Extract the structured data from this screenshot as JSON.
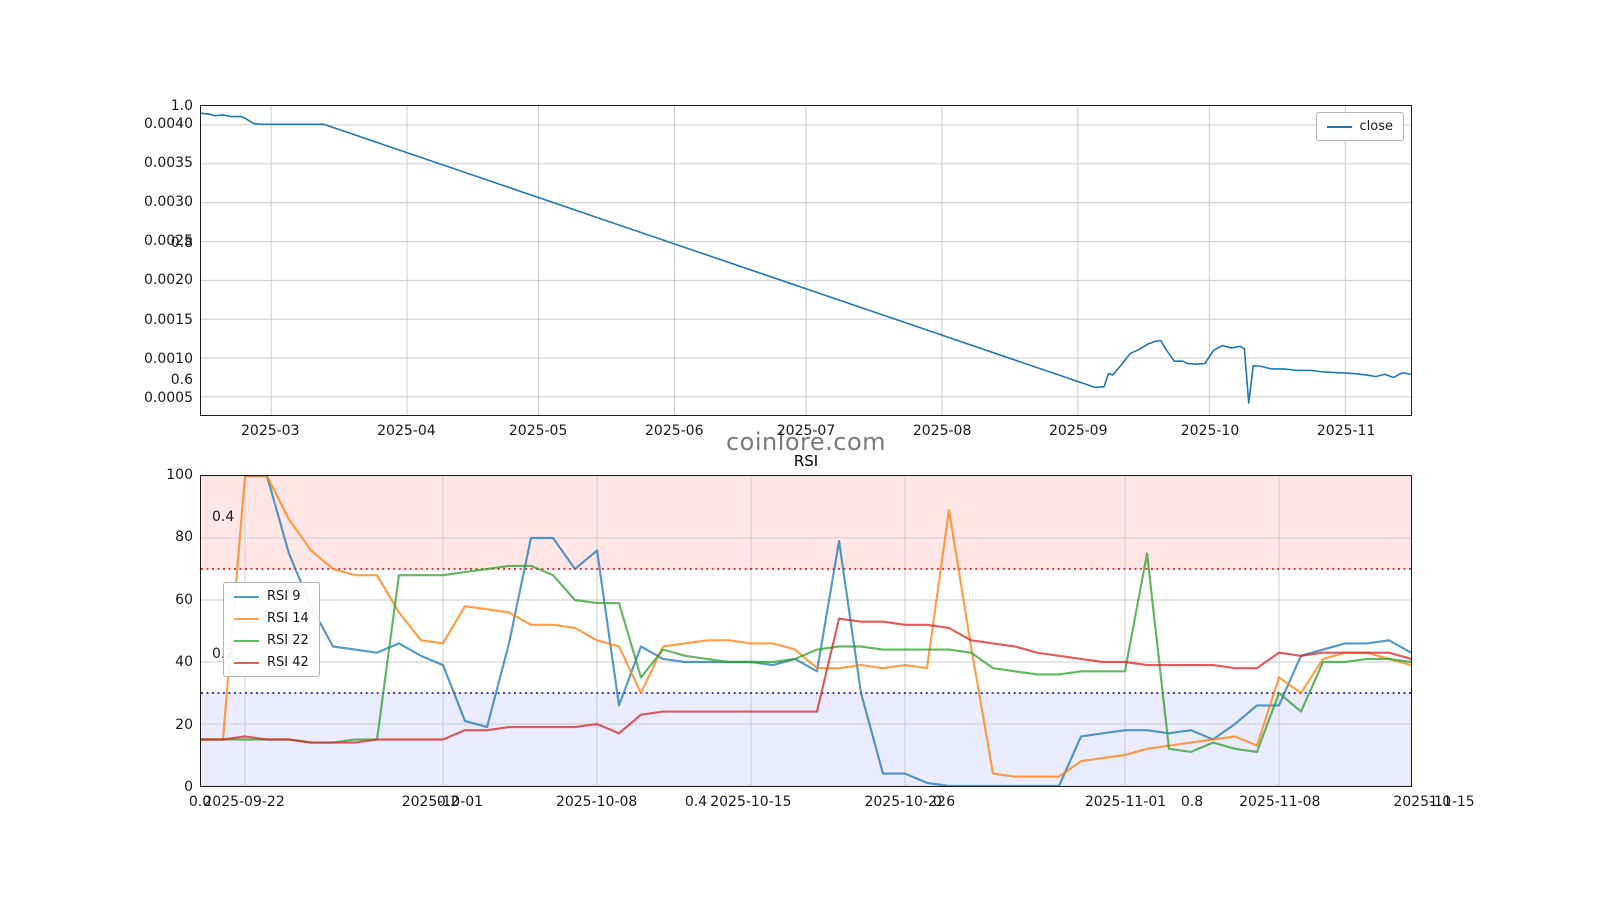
{
  "watermark": "coinlore.com",
  "stray_axis_labels": {
    "x": [
      {
        "label": "0.0",
        "f": 0.0
      },
      {
        "label": "0.2",
        "f": 0.2
      },
      {
        "label": "0.4",
        "f": 0.4
      },
      {
        "label": "0.6",
        "f": 0.6
      },
      {
        "label": "0.8",
        "f": 0.8
      },
      {
        "label": "1.0",
        "f": 1.0
      }
    ],
    "y": [
      {
        "label": "0.2",
        "f": 0.2
      },
      {
        "label": "0.4",
        "f": 0.4
      },
      {
        "label": "0.6",
        "f": 0.6
      },
      {
        "label": "0.8",
        "f": 0.8
      },
      {
        "label": "1.0",
        "f": 1.0
      }
    ]
  },
  "chart_data": [
    {
      "id": "price",
      "type": "line",
      "title": "",
      "xlim": [
        "2025-02-13",
        "2025-11-16"
      ],
      "ylim": [
        0.000266,
        0.004245
      ],
      "grid": true,
      "yticks": [
        {
          "v": 0.0005,
          "label": "0.0005"
        },
        {
          "v": 0.001,
          "label": "0.0010"
        },
        {
          "v": 0.0015,
          "label": "0.0015"
        },
        {
          "v": 0.002,
          "label": "0.0020"
        },
        {
          "v": 0.0025,
          "label": "0.0025"
        },
        {
          "v": 0.003,
          "label": "0.0030"
        },
        {
          "v": 0.0035,
          "label": "0.0035"
        },
        {
          "v": 0.004,
          "label": "0.0040"
        }
      ],
      "xticks": [
        {
          "v": "2025-03-01",
          "label": "2025-03"
        },
        {
          "v": "2025-04-01",
          "label": "2025-04"
        },
        {
          "v": "2025-05-01",
          "label": "2025-05"
        },
        {
          "v": "2025-06-01",
          "label": "2025-06"
        },
        {
          "v": "2025-07-01",
          "label": "2025-07"
        },
        {
          "v": "2025-08-01",
          "label": "2025-08"
        },
        {
          "v": "2025-09-01",
          "label": "2025-09"
        },
        {
          "v": "2025-10-01",
          "label": "2025-10"
        },
        {
          "v": "2025-11-01",
          "label": "2025-11"
        }
      ],
      "legend": {
        "position": "upper-right",
        "entries": [
          {
            "label": "close",
            "color": "#1f77b4",
            "alpha": 1
          }
        ]
      },
      "series": [
        {
          "name": "close",
          "color": "#1f77b4",
          "alpha": 1,
          "points": [
            [
              "2025-02-13",
              0.00415
            ],
            [
              "2025-02-15",
              0.00414
            ],
            [
              "2025-02-16",
              0.00412
            ],
            [
              "2025-02-18",
              0.00413
            ],
            [
              "2025-02-20",
              0.00411
            ],
            [
              "2025-02-22",
              0.00411
            ],
            [
              "2025-02-23",
              0.00409
            ],
            [
              "2025-02-25",
              0.00402
            ],
            [
              "2025-02-27",
              0.00401
            ],
            [
              "2025-03-13",
              0.00401
            ],
            [
              "2025-09-05",
              0.00062
            ],
            [
              "2025-09-07",
              0.00063
            ],
            [
              "2025-09-08",
              0.0008
            ],
            [
              "2025-09-09",
              0.00078
            ],
            [
              "2025-09-11",
              0.00092
            ],
            [
              "2025-09-13",
              0.00106
            ],
            [
              "2025-09-15",
              0.00111
            ],
            [
              "2025-09-17",
              0.00118
            ],
            [
              "2025-09-19",
              0.00122
            ],
            [
              "2025-09-20",
              0.00122
            ],
            [
              "2025-09-21",
              0.00112
            ],
            [
              "2025-09-23",
              0.00096
            ],
            [
              "2025-09-25",
              0.00096
            ],
            [
              "2025-09-26",
              0.00093
            ],
            [
              "2025-09-28",
              0.00092
            ],
            [
              "2025-09-30",
              0.00093
            ],
            [
              "2025-10-02",
              0.0011
            ],
            [
              "2025-10-04",
              0.00116
            ],
            [
              "2025-10-06",
              0.00113
            ],
            [
              "2025-10-08",
              0.00115
            ],
            [
              "2025-10-09",
              0.00112
            ],
            [
              "2025-10-10",
              0.00042
            ],
            [
              "2025-10-11",
              0.0009
            ],
            [
              "2025-10-13",
              0.00089
            ],
            [
              "2025-10-15",
              0.00086
            ],
            [
              "2025-10-18",
              0.00086
            ],
            [
              "2025-10-21",
              0.00084
            ],
            [
              "2025-10-24",
              0.00084
            ],
            [
              "2025-10-27",
              0.00082
            ],
            [
              "2025-10-31",
              0.00081
            ],
            [
              "2025-11-03",
              0.0008
            ],
            [
              "2025-11-06",
              0.00078
            ],
            [
              "2025-11-08",
              0.00076
            ],
            [
              "2025-11-10",
              0.00079
            ],
            [
              "2025-11-12",
              0.00075
            ],
            [
              "2025-11-14",
              0.00081
            ],
            [
              "2025-11-16",
              0.00079
            ]
          ]
        }
      ]
    },
    {
      "id": "rsi",
      "type": "line",
      "title": "RSI",
      "xlim": [
        "2025-09-20",
        "2025-11-14"
      ],
      "ylim": [
        0,
        100
      ],
      "grid": true,
      "yticks": [
        {
          "v": 100,
          "label": "100"
        },
        {
          "v": 80,
          "label": "80"
        },
        {
          "v": 60,
          "label": "60"
        },
        {
          "v": 40,
          "label": "40"
        },
        {
          "v": 20,
          "label": "20"
        },
        {
          "v": 0,
          "label": "0"
        }
      ],
      "xticks": [
        {
          "v": "2025-09-22",
          "label": "2025-09-22"
        },
        {
          "v": "2025-10-01",
          "label": "2025-10-01"
        },
        {
          "v": "2025-10-08",
          "label": "2025-10-08"
        },
        {
          "v": "2025-10-15",
          "label": "2025-10-15"
        },
        {
          "v": "2025-10-22",
          "label": "2025-10-22"
        },
        {
          "v": "2025-11-01",
          "label": "2025-11-01"
        },
        {
          "v": "2025-11-08",
          "label": "2025-11-08"
        },
        {
          "v": "2025-11-15",
          "label": "2025-11-15"
        }
      ],
      "bands": [
        {
          "y0": 70,
          "y1": 100,
          "color": "rgba(255,70,70,0.13)"
        },
        {
          "y0": 0,
          "y1": 30,
          "color": "rgba(80,80,255,0.11)"
        }
      ],
      "hlines": [
        {
          "y": 70,
          "color": "#d40000"
        },
        {
          "y": 30,
          "color": "#00009c"
        }
      ],
      "legend": {
        "position": "center-left",
        "entries": [
          {
            "label": "RSI 9",
            "color": "#1f77b4",
            "alpha": 0.75
          },
          {
            "label": "RSI 14",
            "color": "#ff7f0e",
            "alpha": 0.75
          },
          {
            "label": "RSI 22",
            "color": "#2ca02c",
            "alpha": 0.75
          },
          {
            "label": "RSI 42",
            "color": "#d62728",
            "alpha": 0.75
          }
        ]
      },
      "series": [
        {
          "name": "RSI 9",
          "color": "#1f77b4",
          "alpha": 0.75,
          "start": "2025-09-22",
          "values": [
            100,
            100,
            75,
            58,
            45,
            44,
            43,
            46,
            42,
            39,
            21,
            19,
            46,
            80,
            80,
            70,
            76,
            26,
            45,
            41,
            40,
            40,
            40,
            40,
            39,
            41,
            37,
            79,
            30,
            4,
            4,
            1,
            0,
            0,
            0,
            0,
            0,
            0,
            16,
            17,
            18,
            18,
            17,
            18,
            15,
            20,
            26,
            26,
            42,
            44,
            46,
            46,
            47,
            43,
            48
          ]
        },
        {
          "name": "RSI 14",
          "color": "#ff7f0e",
          "alpha": 0.75,
          "start": "2025-09-20",
          "values": [
            15,
            15,
            100,
            100,
            86,
            76,
            70,
            68,
            68,
            56,
            47,
            46,
            58,
            57,
            56,
            52,
            52,
            51,
            47,
            45,
            30,
            45,
            46,
            47,
            47,
            46,
            46,
            44,
            38,
            38,
            39,
            38,
            39,
            38,
            89,
            45,
            4,
            3,
            3,
            3,
            8,
            9,
            10,
            12,
            13,
            14,
            15,
            16,
            13,
            35,
            30,
            41,
            43,
            43,
            41,
            39,
            38
          ]
        },
        {
          "name": "RSI 22",
          "color": "#2ca02c",
          "alpha": 0.75,
          "start": "2025-09-20",
          "values": [
            15,
            15,
            15,
            15,
            15,
            14,
            14,
            15,
            15,
            68,
            68,
            68,
            69,
            70,
            71,
            71,
            68,
            60,
            59,
            59,
            35,
            44,
            42,
            41,
            40,
            40,
            40,
            41,
            44,
            45,
            45,
            44,
            44,
            44,
            44,
            43,
            38,
            37,
            36,
            36,
            37,
            37,
            37,
            75,
            12,
            11,
            14,
            12,
            11,
            30,
            24,
            40,
            40,
            41,
            41,
            40,
            38
          ]
        },
        {
          "name": "RSI 42",
          "color": "#d62728",
          "alpha": 0.75,
          "start": "2025-09-20",
          "values": [
            15,
            15,
            16,
            15,
            15,
            14,
            14,
            14,
            15,
            15,
            15,
            15,
            18,
            18,
            19,
            19,
            19,
            19,
            20,
            17,
            23,
            24,
            24,
            24,
            24,
            24,
            24,
            24,
            24,
            54,
            53,
            53,
            52,
            52,
            51,
            47,
            46,
            45,
            43,
            42,
            41,
            40,
            40,
            39,
            39,
            39,
            39,
            38,
            38,
            43,
            42,
            43,
            43,
            43,
            43,
            41,
            39
          ]
        }
      ]
    }
  ]
}
